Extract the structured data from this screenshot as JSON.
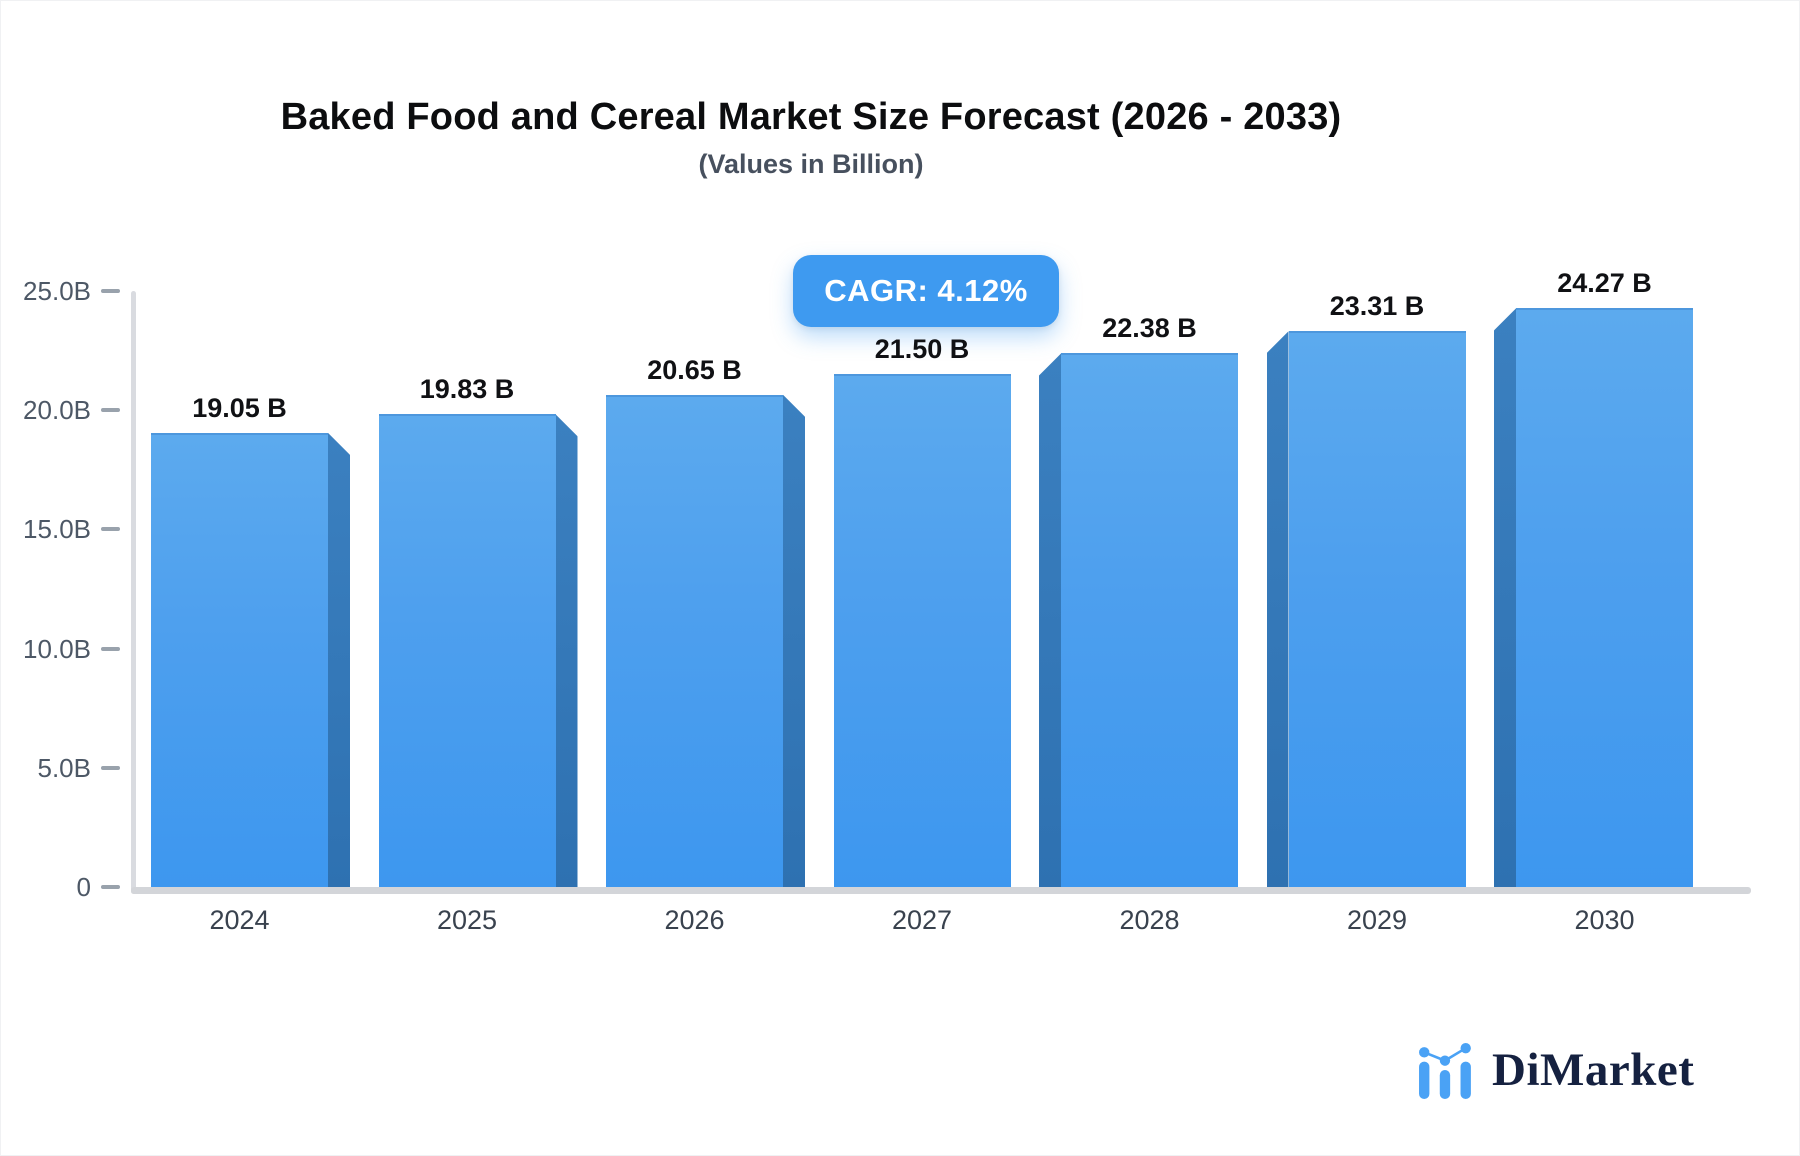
{
  "header": {
    "title": "Baked Food and Cereal Market Size Forecast (2026 - 2033)",
    "subtitle": "(Values in Billion)"
  },
  "badge": {
    "text": "CAGR: 4.12%",
    "bg_color": "#3e9af0",
    "text_color": "#ffffff"
  },
  "logo": {
    "text": "DiMarket",
    "icon": "mini-bar-line-chart-icon",
    "text_color": "#152140",
    "icon_color": "#4aa2f5"
  },
  "colors": {
    "bar_face_top": "#5caaee",
    "bar_face_bottom": "#3d97ef",
    "bar_side": "#2f72b2",
    "axis_line": "#d9dbe0",
    "tick_text": "#4d5866",
    "value_text": "#101114"
  },
  "chart_data": {
    "type": "bar",
    "title": "Baked Food and Cereal Market Size Forecast (2026 - 2033)",
    "subtitle": "(Values in Billion)",
    "categories": [
      "2024",
      "2025",
      "2026",
      "2027",
      "2028",
      "2029",
      "2030"
    ],
    "values": [
      19.05,
      19.83,
      20.65,
      21.5,
      22.38,
      23.31,
      24.27
    ],
    "bar_labels": [
      "19.05 B",
      "19.83 B",
      "20.65 B",
      "21.50 B",
      "22.38 B",
      "23.31 B",
      "24.27 B"
    ],
    "annotations": [
      "CAGR: 4.12%"
    ],
    "xlabel": "",
    "ylabel": "",
    "ylim": [
      0,
      25
    ],
    "yticks": [
      {
        "value": 25,
        "label": "25.0B"
      },
      {
        "value": 20,
        "label": "20.0B"
      },
      {
        "value": 15,
        "label": "15.0B"
      },
      {
        "value": 10,
        "label": "10.0B"
      },
      {
        "value": 5,
        "label": "5.0B"
      },
      {
        "value": 0,
        "label": "0"
      }
    ],
    "grid": false,
    "legend": false,
    "bar_style": "pseudo-3d",
    "bar_color": "#3b97ef"
  }
}
